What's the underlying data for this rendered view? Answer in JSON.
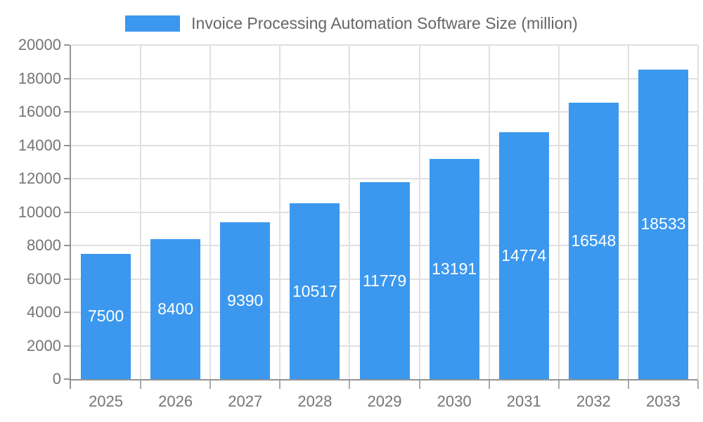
{
  "chart_data": {
    "type": "bar",
    "title": "Invoice Processing Automation Software Size (million)",
    "categories": [
      "2025",
      "2026",
      "2027",
      "2028",
      "2029",
      "2030",
      "2031",
      "2032",
      "2033"
    ],
    "values": [
      7500,
      8400,
      9390,
      10517,
      11779,
      13191,
      14774,
      16548,
      18533
    ],
    "xlabel": "",
    "ylabel": "",
    "ylim": [
      0,
      20000
    ],
    "ytick_step": 2000,
    "grid": true,
    "legend_position": "top",
    "value_labels": "inside-center-white"
  },
  "colors": {
    "bar": "#3B98EE",
    "bar_label": "#FFFFFF",
    "axis_line": "#949494",
    "gridline": "#E0E0E0",
    "axis_text": "#757575",
    "legend_text": "#666666",
    "background": "#FFFFFF"
  }
}
